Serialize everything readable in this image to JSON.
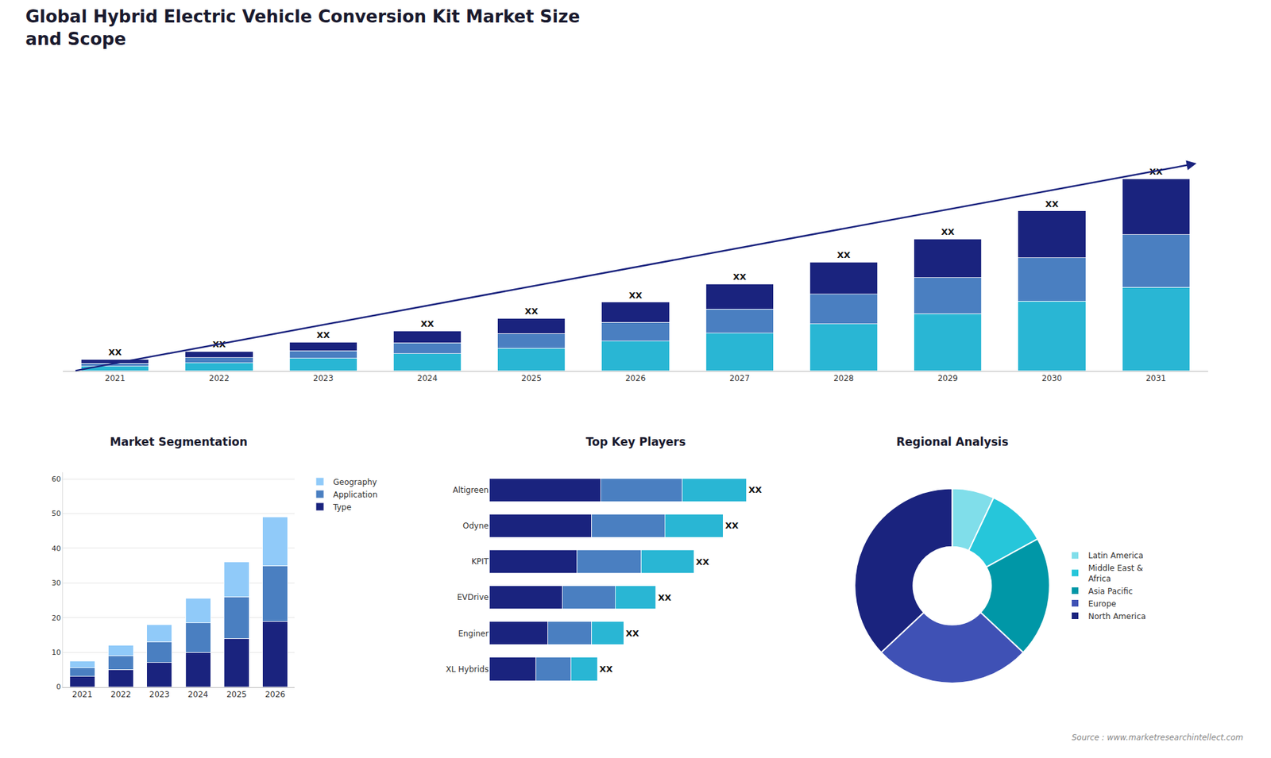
{
  "chart_data": [
    {
      "type": "bar",
      "title": "Global Hybrid Electric Vehicle Conversion Kit Market Size\nand Scope",
      "stacked": true,
      "categories": [
        "2021",
        "2022",
        "2023",
        "2024",
        "2025",
        "2026",
        "2027",
        "2028",
        "2029",
        "2030",
        "2031"
      ],
      "series": [
        {
          "color": "#29b6d4",
          "values": [
            0.4,
            0.7,
            1.1,
            1.5,
            2.0,
            2.6,
            3.3,
            4.1,
            5.0,
            6.1,
            7.3
          ]
        },
        {
          "color": "#4a7fc1",
          "values": [
            0.25,
            0.45,
            0.65,
            0.95,
            1.25,
            1.65,
            2.1,
            2.6,
            3.15,
            3.8,
            4.6
          ]
        },
        {
          "color": "#1a237e",
          "values": [
            0.35,
            0.55,
            0.75,
            1.05,
            1.35,
            1.75,
            2.2,
            2.8,
            3.4,
            4.1,
            4.9
          ],
          "value_labels": [
            "XX",
            "XX",
            "XX",
            "XX",
            "XX",
            "XX",
            "XX",
            "XX",
            "XX",
            "XX",
            "XX"
          ]
        }
      ],
      "ylim": [
        0,
        22.68
      ],
      "tick_labels": "x",
      "annotations": [
        "Source : www.marketresearchintellect.com"
      ]
    },
    {
      "type": "bar",
      "title": "Market Segmentation",
      "stacked": true,
      "categories": [
        "2021",
        "2022",
        "2023",
        "2024",
        "2025",
        "2026"
      ],
      "series": [
        {
          "name": "Type",
          "color": "#1a237e",
          "values": [
            3,
            5,
            7,
            10,
            14,
            19
          ]
        },
        {
          "name": "Application",
          "color": "#4a7fc1",
          "values": [
            2.5,
            4,
            6,
            8.5,
            12,
            16
          ]
        },
        {
          "name": "Geography",
          "color": "#90caf9",
          "values": [
            2,
            3,
            5,
            7,
            10,
            14
          ]
        }
      ],
      "ylim": [
        0,
        62
      ],
      "yticks": [
        0,
        10,
        20,
        30,
        40,
        50,
        60
      ],
      "grid": true,
      "legend": "right"
    },
    {
      "type": "bar",
      "title": "Top Key Players",
      "stacked": true,
      "orientation": "horizontal",
      "categories": [
        "Altigreen",
        "Odyne",
        "KPIT",
        "EVDrive",
        "Enginer",
        "XL Hybrids"
      ],
      "series": [
        {
          "color": "#1a237e",
          "values": [
            0.38,
            0.35,
            0.3,
            0.25,
            0.2,
            0.16
          ]
        },
        {
          "color": "#4a7fc1",
          "values": [
            0.28,
            0.25,
            0.22,
            0.18,
            0.15,
            0.12
          ]
        },
        {
          "color": "#29b6d4",
          "values": [
            0.22,
            0.2,
            0.18,
            0.14,
            0.11,
            0.09
          ],
          "value_labels": [
            "XX",
            "XX",
            "XX",
            "XX",
            "XX",
            "XX"
          ]
        }
      ],
      "xlim": [
        0,
        1
      ],
      "tick_labels": "y"
    },
    {
      "type": "pie",
      "title": "Regional Analysis",
      "categories": [
        "Latin America",
        "Middle East &\nAfrica",
        "Asia Pacific",
        "Europe",
        "North America"
      ],
      "values": [
        7,
        10,
        20,
        26,
        37
      ],
      "colors": [
        "#80deea",
        "#26c6da",
        "#0097a7",
        "#3f51b5",
        "#1a237e"
      ],
      "legend": "right"
    }
  ]
}
